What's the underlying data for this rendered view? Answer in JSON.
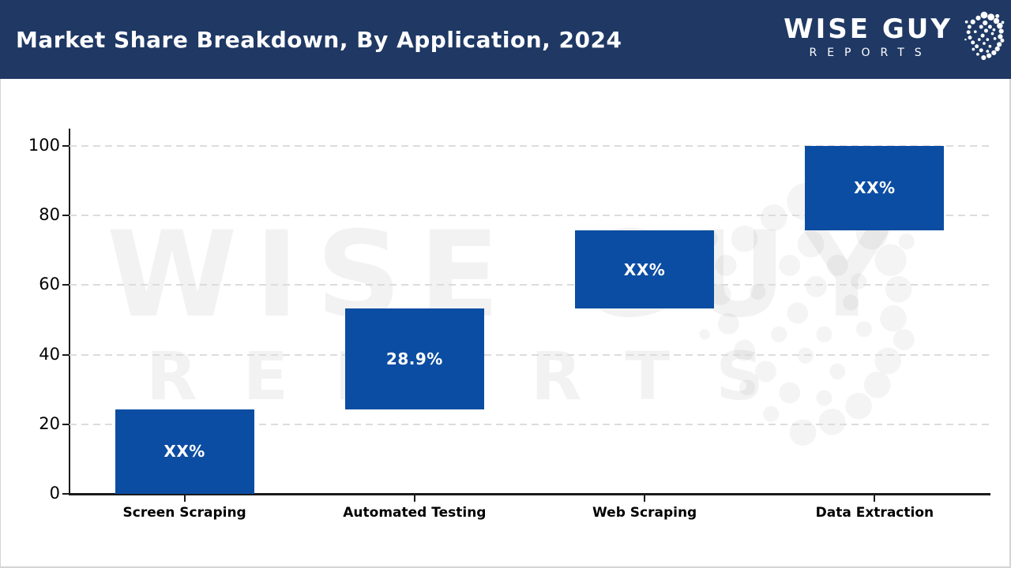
{
  "header": {
    "title": "Market Share Breakdown, By Application, 2024",
    "logo": {
      "line1": "WISE GUY",
      "line2": "REPORTS"
    }
  },
  "watermark": {
    "line1": "WISE GUY",
    "line2": "REPORTS"
  },
  "colors": {
    "header_bg": "#1f3864",
    "bar": "#0b4da2",
    "grid": "#dcdcdc",
    "axis": "#1a1a1a",
    "bar_label": "#ffffff",
    "frame_border": "#d4d4d4"
  },
  "chart_data": {
    "type": "bar",
    "subtype": "waterfall",
    "title": "Market Share Breakdown, By Application, 2024",
    "categories": [
      "Screen Scraping",
      "Automated Testing",
      "Web Scraping",
      "Data Extraction"
    ],
    "series": [
      {
        "name": "Market Share %",
        "segments": [
          {
            "category": "Screen Scraping",
            "start": 0,
            "end": 24.3,
            "label": "XX%"
          },
          {
            "category": "Automated Testing",
            "start": 24.3,
            "end": 53.2,
            "label": "28.9%"
          },
          {
            "category": "Web Scraping",
            "start": 53.2,
            "end": 75.8,
            "label": "XX%"
          },
          {
            "category": "Data Extraction",
            "start": 75.8,
            "end": 100,
            "label": "XX%"
          }
        ]
      }
    ],
    "xlabel": "",
    "ylabel": "",
    "ylim": [
      0,
      105
    ],
    "yticks": [
      0,
      20,
      40,
      60,
      80,
      100
    ],
    "grid": "horizontal-dashed",
    "legend": "none",
    "bar_color": "#0b4da2"
  }
}
